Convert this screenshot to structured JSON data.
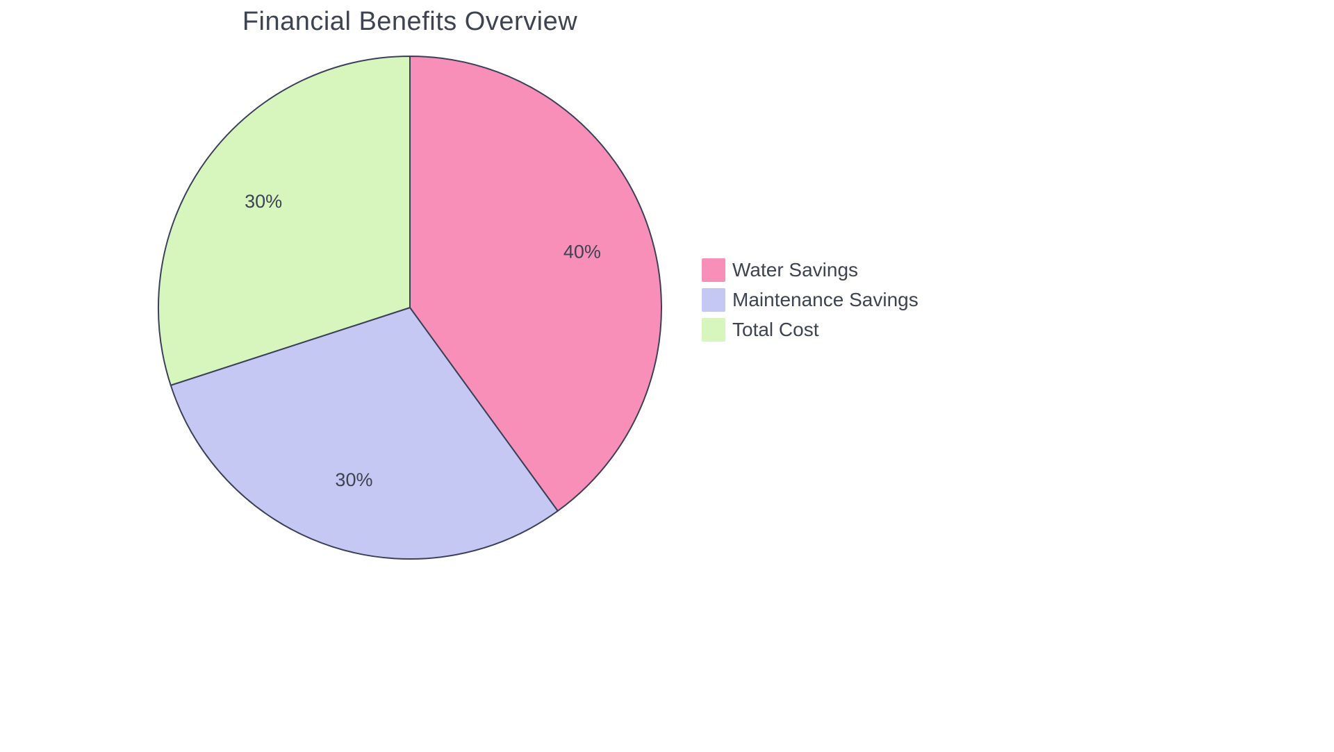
{
  "title": "Financial Benefits Overview",
  "chart_data": {
    "type": "pie",
    "title": "Financial Benefits Overview",
    "labels": [
      "Water Savings",
      "Maintenance Savings",
      "Total Cost"
    ],
    "values": [
      40,
      30,
      30
    ],
    "value_labels": [
      "40%",
      "30%",
      "30%"
    ],
    "colors": [
      "#F78FB9",
      "#C5C8F2",
      "#D7F6BE"
    ],
    "stroke_color": "#3B4058",
    "text_color": "#3d4351",
    "start_angle_deg": -90,
    "direction": "clockwise",
    "legend_position": "right",
    "grid": false
  }
}
